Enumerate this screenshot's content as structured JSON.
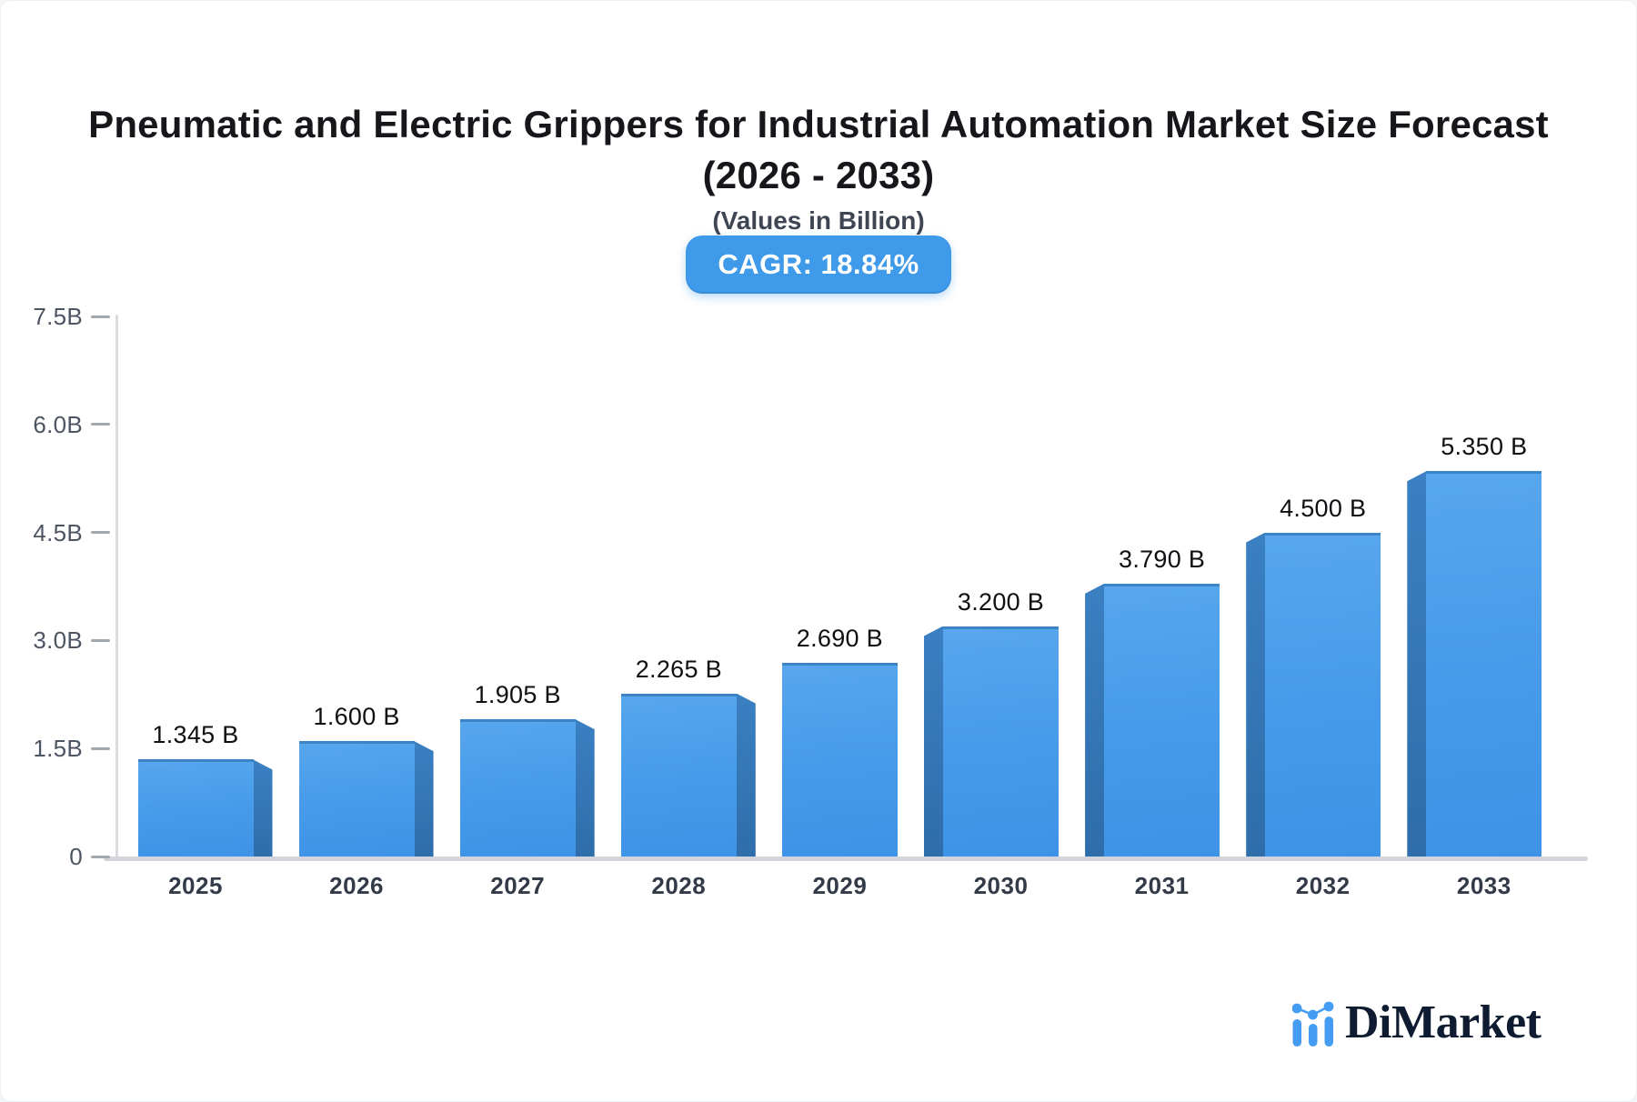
{
  "header": {
    "title_line1": "Pneumatic and Electric Grippers for Industrial Automation Market Size Forecast",
    "title_line2": "(2026 - 2033)",
    "subtitle": "(Values in Billion)",
    "badge": "CAGR: 18.84%"
  },
  "chart_data": {
    "type": "bar",
    "title": "Pneumatic and Electric Grippers for Industrial Automation Market Size Forecast (2026 - 2033)",
    "subtitle": "Values in Billion",
    "cagr_percent": 18.84,
    "categories": [
      "2025",
      "2026",
      "2027",
      "2028",
      "2029",
      "2030",
      "2031",
      "2032",
      "2033"
    ],
    "values": [
      1.345,
      1.6,
      1.905,
      2.265,
      2.69,
      3.2,
      3.79,
      4.5,
      5.35
    ],
    "value_labels": [
      "1.345 B",
      "1.600 B",
      "1.905 B",
      "2.265 B",
      "2.690 B",
      "3.200 B",
      "3.790 B",
      "4.500 B",
      "5.350 B"
    ],
    "xlabel": "",
    "ylabel": "",
    "ylim": [
      0,
      7.5
    ],
    "yticks": [
      {
        "value": 0,
        "label": "0"
      },
      {
        "value": 1.5,
        "label": "1.5B"
      },
      {
        "value": 3.0,
        "label": "3.0B"
      },
      {
        "value": 4.5,
        "label": "4.5B"
      },
      {
        "value": 6.0,
        "label": "6.0B"
      },
      {
        "value": 7.5,
        "label": "7.5B"
      }
    ],
    "grid": false,
    "legend_position": "none",
    "bar_style": "3d",
    "colors": {
      "bar_front_top": "#58a7ee",
      "bar_front_bottom": "#3e93e7",
      "bar_side": "#3577b8",
      "badge_background": "#3f9ae9",
      "axis_line": "#d9dcdf",
      "tick_text": "#4d5563",
      "value_text": "#0d0f12",
      "category_text": "#333b49"
    }
  },
  "footer": {
    "brand": "DiMarket",
    "logo_color": "#459df3",
    "brand_text_color": "#0e1b31"
  }
}
